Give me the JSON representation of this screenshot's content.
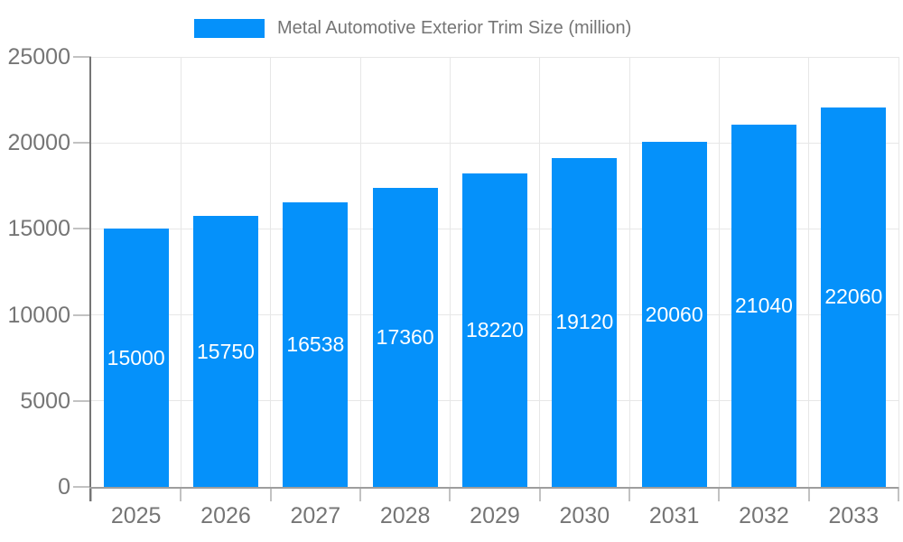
{
  "chart_data": {
    "type": "bar",
    "title": "Metal Automotive Exterior Trim Size (million)",
    "categories": [
      "2025",
      "2026",
      "2027",
      "2028",
      "2029",
      "2030",
      "2031",
      "2032",
      "2033"
    ],
    "values": [
      15000,
      15750,
      16538,
      17360,
      18220,
      19120,
      20060,
      21040,
      22060
    ],
    "series": [
      {
        "name": "Metal Automotive Exterior Trim Size (million)",
        "values": [
          15000,
          15750,
          16538,
          17360,
          18220,
          19120,
          20060,
          21040,
          22060
        ]
      }
    ],
    "xlabel": "",
    "ylabel": "",
    "ylim": [
      0,
      25000
    ],
    "yticks": [
      0,
      5000,
      10000,
      15000,
      20000,
      25000
    ],
    "grid": true,
    "legend_position": "top",
    "value_label_position": "inside-center",
    "colors": {
      "bar": "#0591fa",
      "value_label_text": "#ffffff",
      "axis_text": "#757575",
      "legend_text": "#757575",
      "y_axis_line": "#757575",
      "x_axis_line": "#9e9e9e",
      "grid_line": "#e7e7e7",
      "tick_line": "#c2c2c2",
      "background": "#ffffff"
    }
  }
}
